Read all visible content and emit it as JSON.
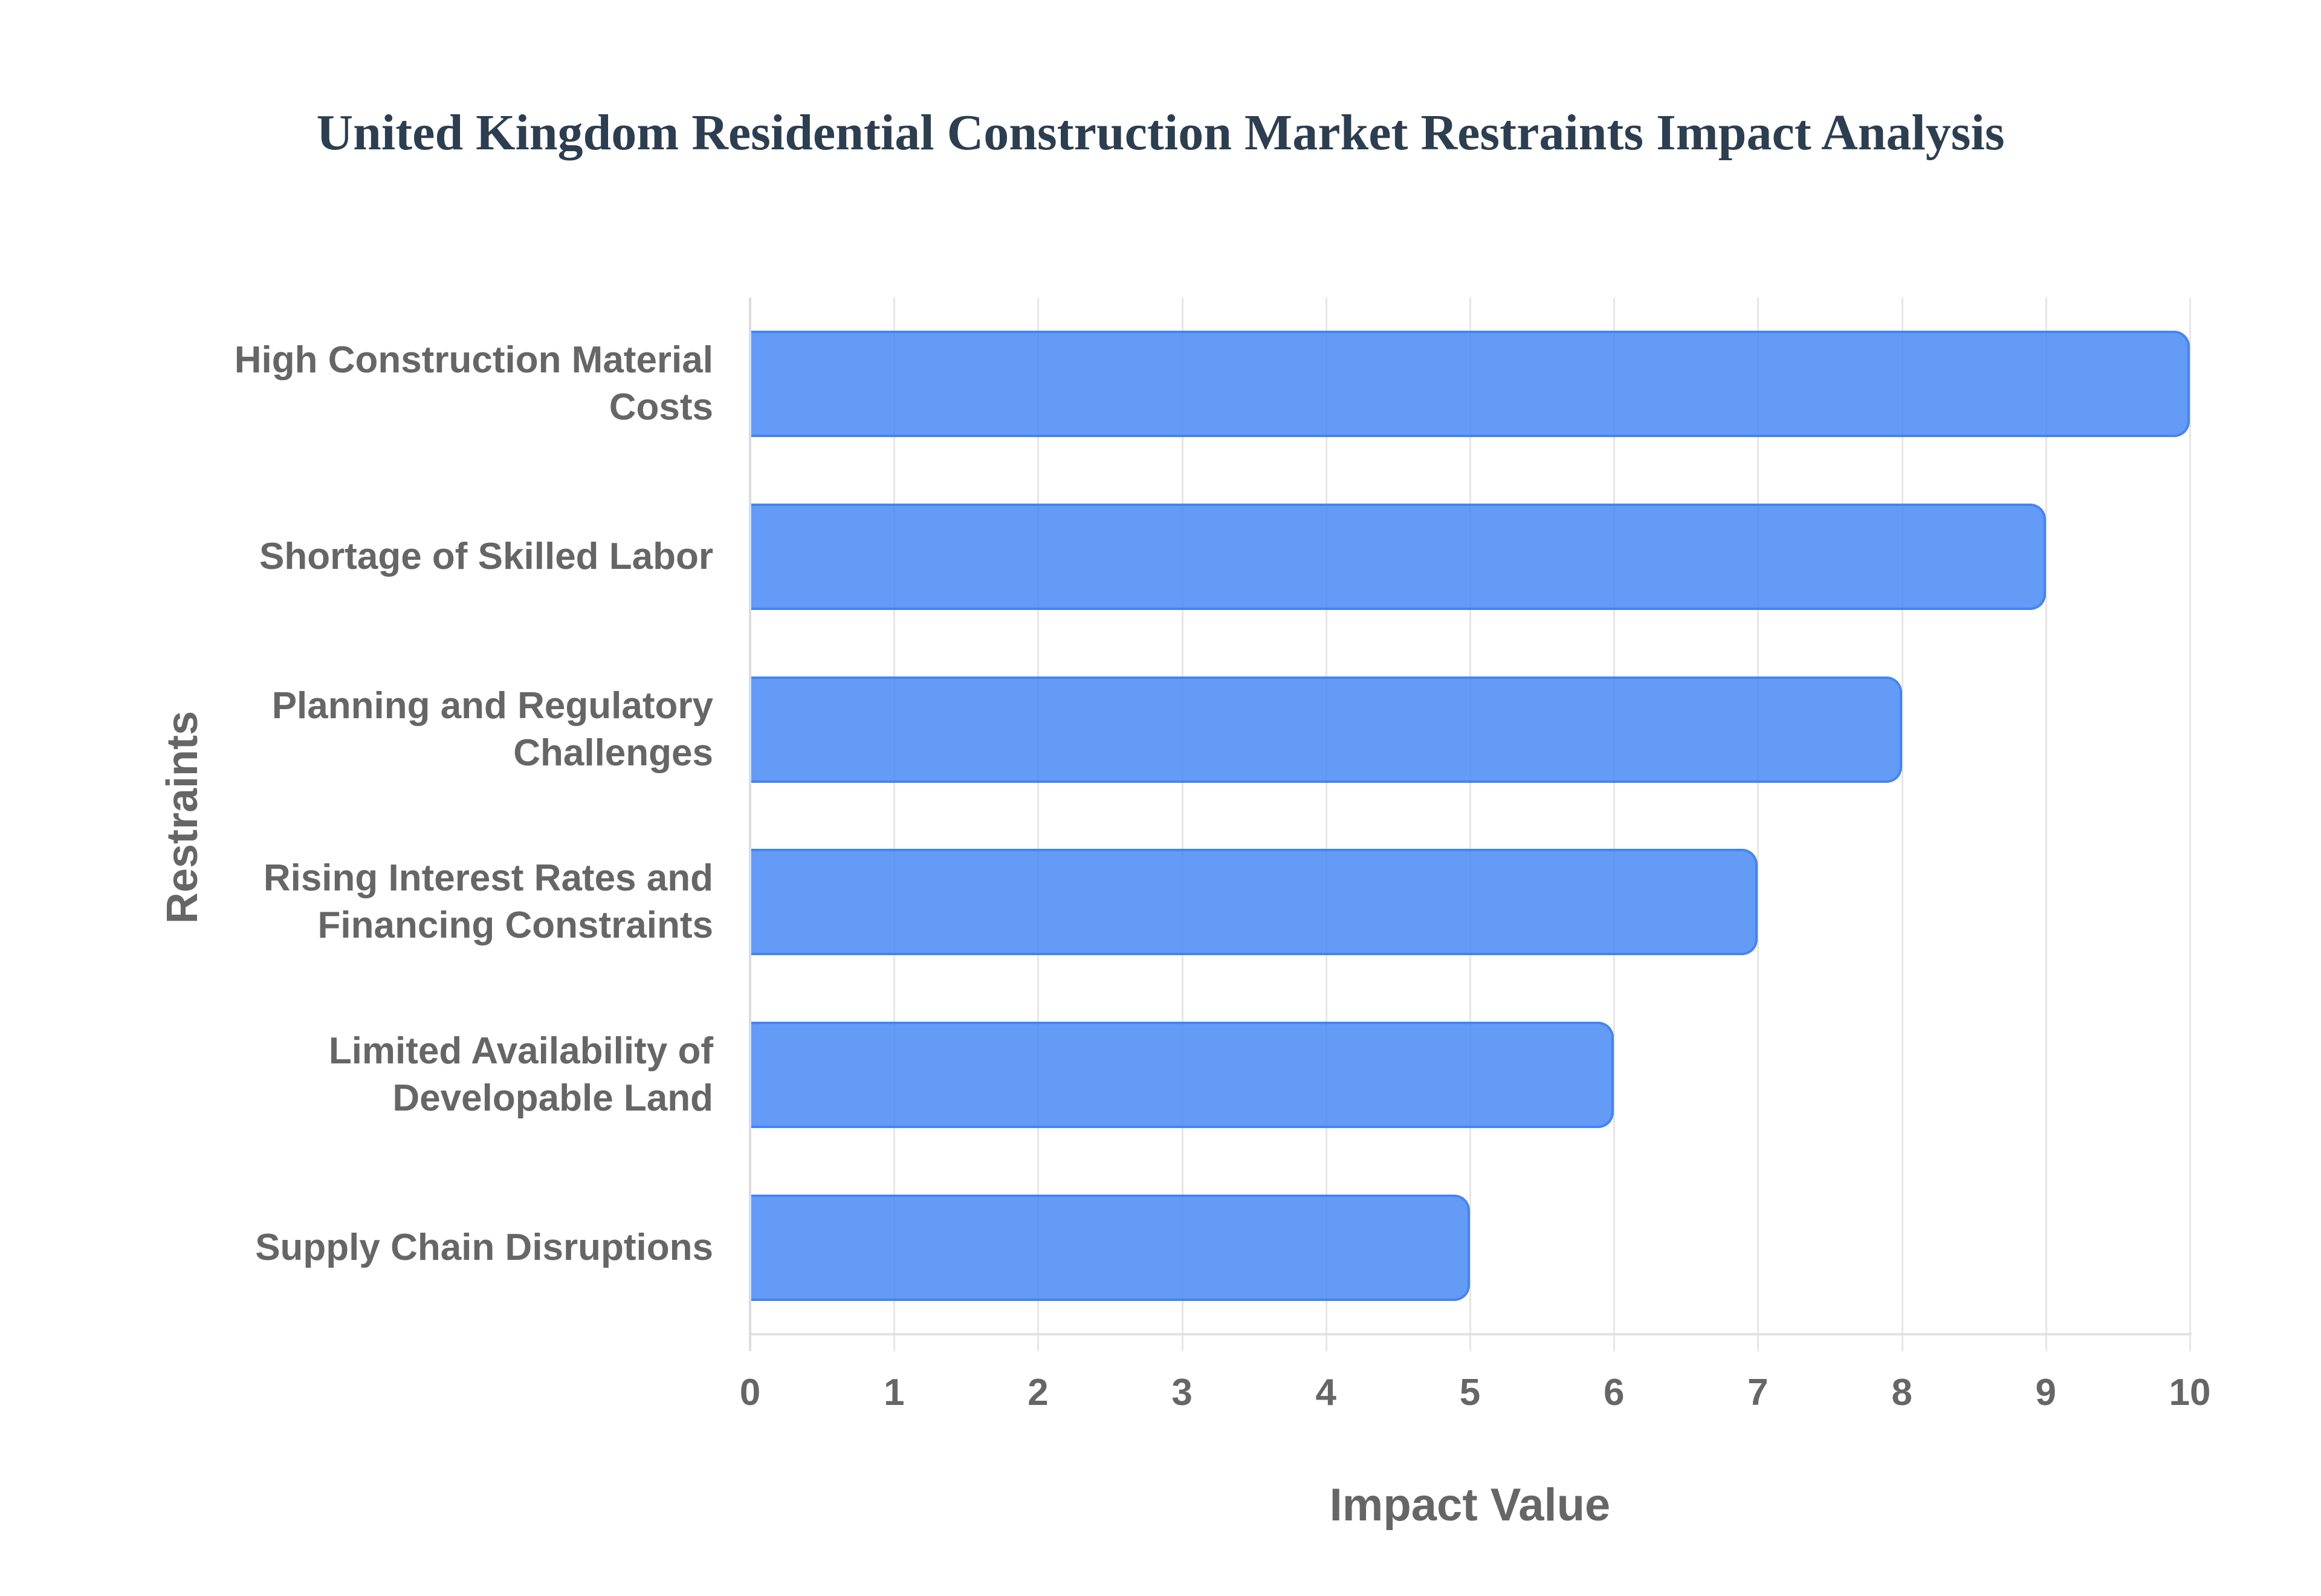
{
  "chart_data": {
    "type": "bar",
    "orientation": "horizontal",
    "title": "United Kingdom Residential Construction Market Restraints Impact Analysis",
    "xlabel": "Impact Value",
    "ylabel": "Restraints",
    "categories": [
      "High Construction Material Costs",
      "Shortage of Skilled Labor",
      "Planning and Regulatory Challenges",
      "Rising Interest Rates and Financing Constraints",
      "Limited Availability of Developable Land",
      "Supply Chain Disruptions"
    ],
    "category_label_lines": [
      [
        "High Construction Material",
        "Costs"
      ],
      [
        "Shortage of Skilled Labor"
      ],
      [
        "Planning and Regulatory",
        "Challenges"
      ],
      [
        "Rising Interest Rates and",
        "Financing Constraints"
      ],
      [
        "Limited Availability of",
        "Developable Land"
      ],
      [
        "Supply Chain Disruptions"
      ]
    ],
    "values": [
      10,
      9,
      8,
      7,
      6,
      5
    ],
    "xlim": [
      0,
      10
    ],
    "xticks": [
      "0",
      "1",
      "2",
      "3",
      "4",
      "5",
      "6",
      "7",
      "8",
      "9",
      "10"
    ],
    "grid": true,
    "legend": "none",
    "colors": {
      "bar_fill": "#6199f5",
      "bar_border": "#4285f4",
      "title": "#2c3e50",
      "axis_text": "#666666",
      "grid": "#e6e6e6"
    }
  }
}
